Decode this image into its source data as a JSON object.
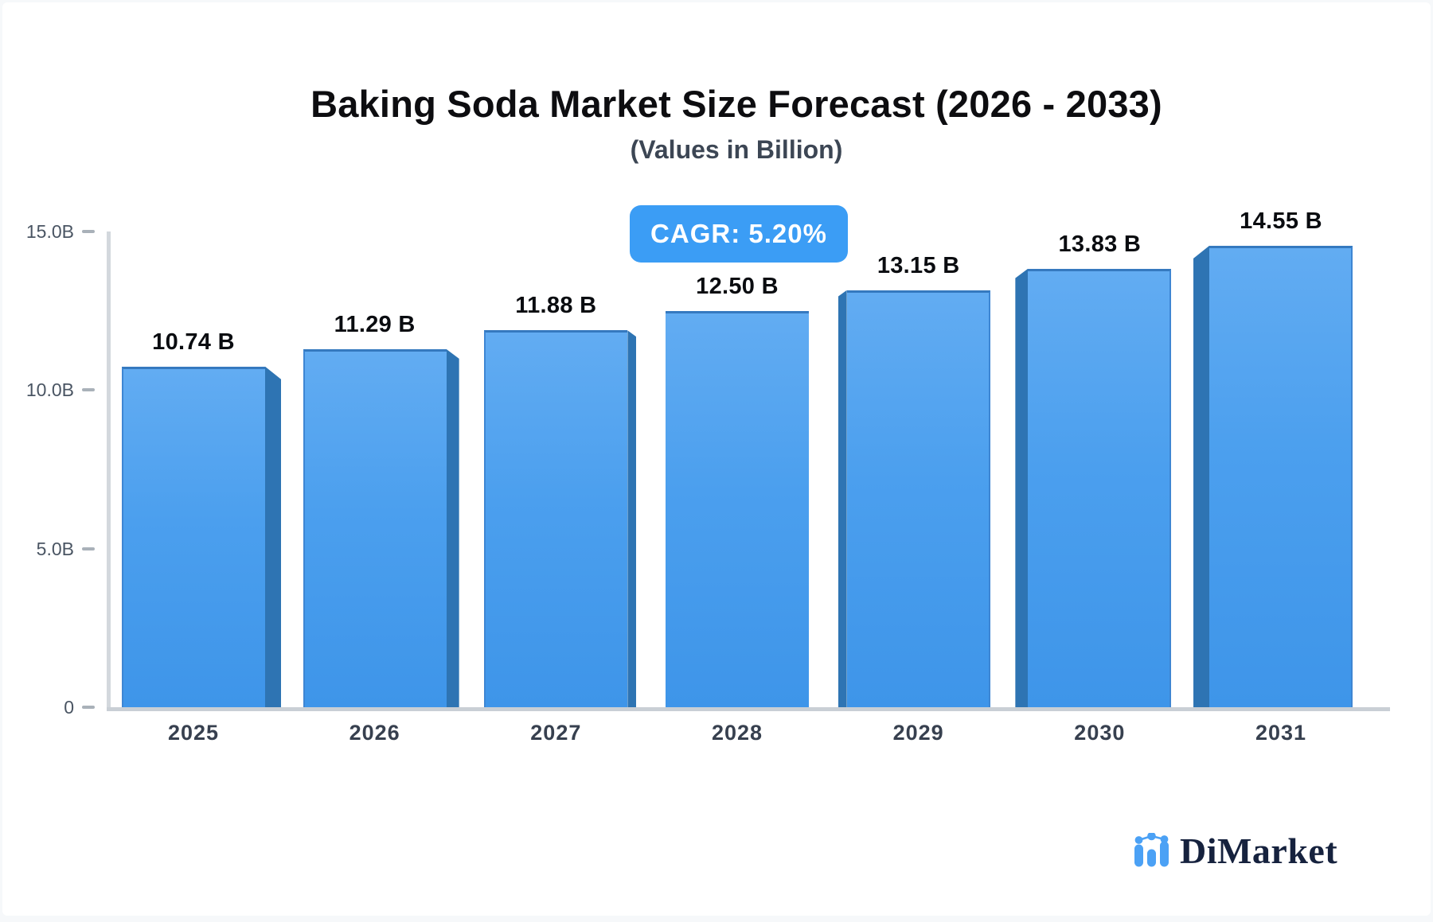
{
  "page": {
    "background": "#F6F8FA",
    "card_background": "#FFFFFF"
  },
  "header": {
    "title": "Baking Soda Market Size Forecast (2026 - 2033)",
    "subtitle": "(Values in Billion)"
  },
  "badge": {
    "label": "CAGR: 5.20%",
    "background": "#3B9DF5",
    "text_color": "#FFFFFF"
  },
  "chart_data": {
    "type": "bar",
    "title": "Baking Soda Market Size Forecast (2026 - 2033)",
    "subtitle": "(Values in Billion)",
    "categories": [
      "2025",
      "2026",
      "2027",
      "2028",
      "2029",
      "2030",
      "2031"
    ],
    "values": [
      10.74,
      11.29,
      11.88,
      12.5,
      13.15,
      13.83,
      14.55
    ],
    "value_labels": [
      "10.74 B",
      "11.29 B",
      "11.88 B",
      "12.50 B",
      "13.15 B",
      "13.83 B",
      "14.55 B"
    ],
    "unit": "Billion",
    "xlabel": "",
    "ylabel": "",
    "ylim": [
      0,
      15
    ],
    "y_axis": [
      {
        "value": 0,
        "label": "0"
      },
      {
        "value": 5,
        "label": "5.0B"
      },
      {
        "value": 10,
        "label": "10.0B"
      },
      {
        "value": 15,
        "label": "15.0B"
      }
    ],
    "grid": false,
    "legend": false,
    "bar_color_top": "#62ACF2",
    "bar_color_bottom": "#3E95E9",
    "bar_side_color": "#2E74B3",
    "style": "3d-beveled-bars"
  },
  "logo": {
    "text": "DiMarket",
    "icon": "mini-bar-line-chart-icon",
    "text_color": "#16223E",
    "icon_color": "#4BA1F5"
  }
}
